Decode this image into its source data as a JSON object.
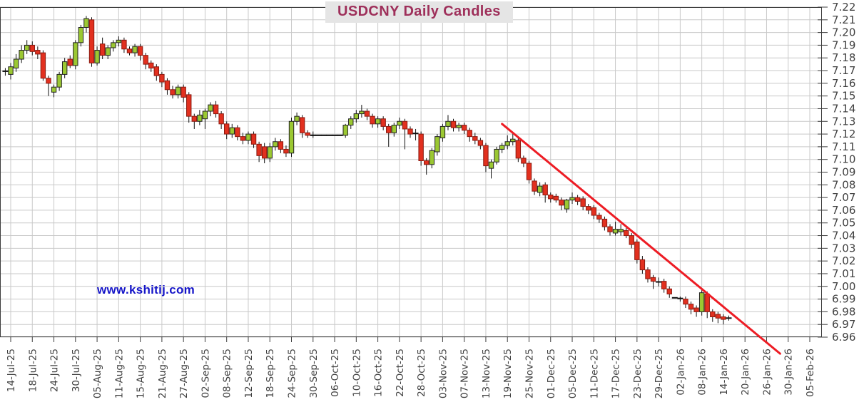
{
  "title": "USDCNY Daily Candles",
  "watermark": "www.kshitij.com",
  "colors": {
    "background": "#ffffff",
    "title_text": "#9e2f5a",
    "title_bg": "#e5e5e5",
    "watermark_text": "#1515c8",
    "up_candle": "#9bc832",
    "up_border": "#222222",
    "down_candle": "#e2301f",
    "down_border": "#8b1a10",
    "wick": "#111111",
    "grid": "#c9c9c9",
    "axis": "#3c3c3c",
    "label_text": "#404040",
    "trendline": "#ed1c24"
  },
  "chart_data": {
    "type": "candlestick",
    "title": "USDCNY Daily Candles",
    "grid": true,
    "y_axis": {
      "min": 6.96,
      "max": 7.22,
      "step": 0.01,
      "side": "right",
      "labels": [
        "7.22",
        "7.21",
        "7.20",
        "7.19",
        "7.18",
        "7.17",
        "7.16",
        "7.15",
        "7.14",
        "7.13",
        "7.12",
        "7.11",
        "7.10",
        "7.09",
        "7.08",
        "7.07",
        "7.06",
        "7.05",
        "7.04",
        "7.03",
        "7.02",
        "7.01",
        "7.00",
        "6.99",
        "6.98",
        "6.97",
        "6.96"
      ]
    },
    "x_axis": {
      "labels": [
        "14-Jul-25",
        "18-Jul-25",
        "24-Jul-25",
        "30-Jul-25",
        "05-Aug-25",
        "11-Aug-25",
        "15-Aug-25",
        "21-Aug-25",
        "27-Aug-25",
        "02-Sep-25",
        "08-Sep-25",
        "12-Sep-25",
        "18-Sep-25",
        "24-Sep-25",
        "30-Sep-25",
        "06-Oct-25",
        "10-Oct-25",
        "16-Oct-25",
        "22-Oct-25",
        "28-Oct-25",
        "03-Nov-25",
        "07-Nov-25",
        "13-Nov-25",
        "19-Nov-25",
        "25-Nov-25",
        "01-Dec-25",
        "05-Dec-25",
        "11-Dec-25",
        "17-Dec-25",
        "23-Dec-25",
        "29-Dec-25",
        "02-Jan-26",
        "08-Jan-26",
        "14-Jan-26",
        "20-Jan-26",
        "26-Jan-26",
        "30-Jan-26",
        "05-Feb-26"
      ],
      "candles_per_label": 4,
      "first_label_candle_index": 1,
      "label_rotation_deg": -90
    },
    "candles_format": [
      "date",
      "open",
      "high",
      "low",
      "close"
    ],
    "candles": [
      [
        "11-Jul",
        7.17,
        7.172,
        7.166,
        7.169
      ],
      [
        "14-Jul",
        7.167,
        7.176,
        7.163,
        7.173
      ],
      [
        "15-Jul",
        7.172,
        7.183,
        7.169,
        7.179
      ],
      [
        "16-Jul",
        7.179,
        7.19,
        7.176,
        7.186
      ],
      [
        "17-Jul",
        7.186,
        7.194,
        7.183,
        7.19
      ],
      [
        "18-Jul",
        7.19,
        7.193,
        7.182,
        7.185
      ],
      [
        "21-Jul",
        7.186,
        7.189,
        7.179,
        7.183
      ],
      [
        "22-Jul",
        7.184,
        7.186,
        7.162,
        7.164
      ],
      [
        "23-Jul",
        7.164,
        7.166,
        7.15,
        7.16
      ],
      [
        "24-Jul",
        7.153,
        7.159,
        7.149,
        7.157
      ],
      [
        "25-Jul",
        7.157,
        7.169,
        7.154,
        7.167
      ],
      [
        "28-Jul",
        7.167,
        7.18,
        7.164,
        7.177
      ],
      [
        "29-Jul",
        7.179,
        7.182,
        7.172,
        7.174
      ],
      [
        "30-Jul",
        7.174,
        7.194,
        7.171,
        7.192
      ],
      [
        "31-Jul",
        7.192,
        7.206,
        7.189,
        7.204
      ],
      [
        "01-Aug",
        7.204,
        7.213,
        7.2,
        7.211
      ],
      [
        "04-Aug",
        7.21,
        7.212,
        7.173,
        7.176
      ],
      [
        "05-Aug",
        7.176,
        7.189,
        7.174,
        7.186
      ],
      [
        "06-Aug",
        7.191,
        7.196,
        7.179,
        7.182
      ],
      [
        "07-Aug",
        7.182,
        7.19,
        7.179,
        7.188
      ],
      [
        "08-Aug",
        7.188,
        7.194,
        7.185,
        7.192
      ],
      [
        "11-Aug",
        7.192,
        7.197,
        7.189,
        7.194
      ],
      [
        "12-Aug",
        7.194,
        7.196,
        7.184,
        7.187
      ],
      [
        "13-Aug",
        7.187,
        7.189,
        7.182,
        7.184
      ],
      [
        "14-Aug",
        7.184,
        7.191,
        7.181,
        7.189
      ],
      [
        "15-Aug",
        7.189,
        7.191,
        7.178,
        7.182
      ],
      [
        "18-Aug",
        7.182,
        7.184,
        7.171,
        7.175
      ],
      [
        "19-Aug",
        7.176,
        7.178,
        7.169,
        7.172
      ],
      [
        "20-Aug",
        7.173,
        7.175,
        7.162,
        7.166
      ],
      [
        "21-Aug",
        7.167,
        7.169,
        7.157,
        7.161
      ],
      [
        "22-Aug",
        7.162,
        7.164,
        7.151,
        7.155
      ],
      [
        "25-Aug",
        7.155,
        7.158,
        7.148,
        7.151
      ],
      [
        "26-Aug",
        7.151,
        7.159,
        7.148,
        7.157
      ],
      [
        "27-Aug",
        7.157,
        7.159,
        7.145,
        7.149
      ],
      [
        "28-Aug",
        7.151,
        7.153,
        7.129,
        7.134
      ],
      [
        "29-Aug",
        7.134,
        7.136,
        7.124,
        7.13
      ],
      [
        "01-Sep",
        7.13,
        7.139,
        7.127,
        7.135
      ],
      [
        "02-Sep",
        7.132,
        7.14,
        7.124,
        7.138
      ],
      [
        "03-Sep",
        7.138,
        7.145,
        7.134,
        7.143
      ],
      [
        "04-Sep",
        7.143,
        7.146,
        7.133,
        7.136
      ],
      [
        "05-Sep",
        7.136,
        7.138,
        7.124,
        7.128
      ],
      [
        "08-Sep",
        7.128,
        7.13,
        7.116,
        7.12
      ],
      [
        "09-Sep",
        7.12,
        7.128,
        7.117,
        7.125
      ],
      [
        "10-Sep",
        7.125,
        7.127,
        7.115,
        7.118
      ],
      [
        "11-Sep",
        7.118,
        7.121,
        7.112,
        7.115
      ],
      [
        "12-Sep",
        7.115,
        7.122,
        7.112,
        7.12
      ],
      [
        "15-Sep",
        7.12,
        7.122,
        7.109,
        7.112
      ],
      [
        "16-Sep",
        7.112,
        7.114,
        7.098,
        7.103
      ],
      [
        "17-Sep",
        7.11,
        7.113,
        7.097,
        7.101
      ],
      [
        "18-Sep",
        7.101,
        7.113,
        7.098,
        7.11
      ],
      [
        "19-Sep",
        7.11,
        7.117,
        7.107,
        7.114
      ],
      [
        "22-Sep",
        7.114,
        7.116,
        7.105,
        7.108
      ],
      [
        "23-Sep",
        7.108,
        7.111,
        7.102,
        7.105
      ],
      [
        "24-Sep",
        7.105,
        7.133,
        7.102,
        7.13
      ],
      [
        "25-Sep",
        7.13,
        7.137,
        7.127,
        7.134
      ],
      [
        "26-Sep",
        7.133,
        7.135,
        7.117,
        7.121
      ],
      [
        "29-Sep",
        7.121,
        7.123,
        7.117,
        7.119
      ],
      [
        "30-Sep",
        7.119,
        7.122,
        7.117,
        7.119
      ],
      [
        "01-Oct",
        7.119,
        7.119,
        7.119,
        7.119
      ],
      [
        "02-Oct",
        7.119,
        7.119,
        7.119,
        7.119
      ],
      [
        "03-Oct",
        7.119,
        7.119,
        7.119,
        7.119
      ],
      [
        "06-Oct",
        7.119,
        7.119,
        7.119,
        7.119
      ],
      [
        "07-Oct",
        7.119,
        7.119,
        7.119,
        7.119
      ],
      [
        "08-Oct",
        7.119,
        7.128,
        7.117,
        7.127
      ],
      [
        "09-Oct",
        7.127,
        7.134,
        7.124,
        7.132
      ],
      [
        "10-Oct",
        7.132,
        7.139,
        7.129,
        7.136
      ],
      [
        "13-Oct",
        7.136,
        7.143,
        7.133,
        7.138
      ],
      [
        "14-Oct",
        7.138,
        7.14,
        7.131,
        7.134
      ],
      [
        "15-Oct",
        7.134,
        7.136,
        7.125,
        7.128
      ],
      [
        "16-Oct",
        7.128,
        7.134,
        7.125,
        7.132
      ],
      [
        "17-Oct",
        7.132,
        7.134,
        7.123,
        7.126
      ],
      [
        "20-Oct",
        7.126,
        7.128,
        7.11,
        7.121
      ],
      [
        "21-Oct",
        7.121,
        7.129,
        7.118,
        7.127
      ],
      [
        "22-Oct",
        7.127,
        7.133,
        7.124,
        7.13
      ],
      [
        "23-Oct",
        7.13,
        7.132,
        7.108,
        7.124
      ],
      [
        "24-Oct",
        7.124,
        7.126,
        7.117,
        7.12
      ],
      [
        "27-Oct",
        7.121,
        7.124,
        7.115,
        7.12
      ],
      [
        "28-Oct",
        7.12,
        7.122,
        7.095,
        7.099
      ],
      [
        "29-Oct",
        7.099,
        7.101,
        7.088,
        7.096
      ],
      [
        "30-Oct",
        7.096,
        7.109,
        7.093,
        7.107
      ],
      [
        "31-Oct",
        7.106,
        7.12,
        7.103,
        7.118
      ],
      [
        "03-Nov",
        7.117,
        7.128,
        7.114,
        7.126
      ],
      [
        "04-Nov",
        7.126,
        7.135,
        7.123,
        7.13
      ],
      [
        "05-Nov",
        7.13,
        7.132,
        7.122,
        7.125
      ],
      [
        "06-Nov",
        7.125,
        7.129,
        7.122,
        7.127
      ],
      [
        "07-Nov",
        7.127,
        7.129,
        7.12,
        7.123
      ],
      [
        "10-Nov",
        7.123,
        7.125,
        7.114,
        7.118
      ],
      [
        "11-Nov",
        7.118,
        7.121,
        7.112,
        7.115
      ],
      [
        "12-Nov",
        7.115,
        7.117,
        7.108,
        7.111
      ],
      [
        "13-Nov",
        7.111,
        7.113,
        7.09,
        7.095
      ],
      [
        "14-Nov",
        7.093,
        7.1,
        7.085,
        7.098
      ],
      [
        "17-Nov",
        7.098,
        7.11,
        7.096,
        7.108
      ],
      [
        "18-Nov",
        7.108,
        7.113,
        7.105,
        7.111
      ],
      [
        "19-Nov",
        7.111,
        7.119,
        7.108,
        7.114
      ],
      [
        "20-Nov",
        7.114,
        7.121,
        7.111,
        7.116
      ],
      [
        "21-Nov",
        7.115,
        7.117,
        7.098,
        7.101
      ],
      [
        "24-Nov",
        7.101,
        7.103,
        7.094,
        7.097
      ],
      [
        "25-Nov",
        7.097,
        7.099,
        7.081,
        7.084
      ],
      [
        "26-Nov",
        7.083,
        7.085,
        7.072,
        7.075
      ],
      [
        "27-Nov",
        7.074,
        7.082,
        7.071,
        7.079
      ],
      [
        "28-Nov",
        7.08,
        7.082,
        7.066,
        7.072
      ],
      [
        "01-Dec",
        7.072,
        7.074,
        7.066,
        7.069
      ],
      [
        "02-Dec",
        7.071,
        7.073,
        7.066,
        7.068
      ],
      [
        "03-Dec",
        7.068,
        7.07,
        7.06,
        7.064
      ],
      [
        "04-Dec",
        7.061,
        7.069,
        7.058,
        7.068
      ],
      [
        "05-Dec",
        7.068,
        7.074,
        7.065,
        7.07
      ],
      [
        "08-Dec",
        7.07,
        7.072,
        7.064,
        7.067
      ],
      [
        "09-Dec",
        7.069,
        7.071,
        7.06,
        7.063
      ],
      [
        "10-Dec",
        7.063,
        7.065,
        7.057,
        7.06
      ],
      [
        "11-Dec",
        7.062,
        7.064,
        7.053,
        7.056
      ],
      [
        "12-Dec",
        7.056,
        7.058,
        7.05,
        7.053
      ],
      [
        "15-Dec",
        7.053,
        7.055,
        7.044,
        7.047
      ],
      [
        "16-Dec",
        7.047,
        7.049,
        7.04,
        7.043
      ],
      [
        "17-Dec",
        7.042,
        7.051,
        7.04,
        7.045
      ],
      [
        "18-Dec",
        7.043,
        7.049,
        7.04,
        7.045
      ],
      [
        "19-Dec",
        7.044,
        7.046,
        7.038,
        7.04
      ],
      [
        "22-Dec",
        7.04,
        7.042,
        7.03,
        7.033
      ],
      [
        "23-Dec",
        7.035,
        7.037,
        7.018,
        7.021
      ],
      [
        "24-Dec",
        7.021,
        7.024,
        7.01,
        7.013
      ],
      [
        "25-Dec",
        7.013,
        7.015,
        7.003,
        7.006
      ],
      [
        "26-Dec",
        7.007,
        7.009,
        6.998,
        7.004
      ],
      [
        "29-Dec",
        7.004,
        7.007,
        7.0,
        7.003
      ],
      [
        "30-Dec",
        7.004,
        7.006,
        6.995,
        6.998
      ],
      [
        "31-Dec",
        6.998,
        7.0,
        6.991,
        6.994
      ],
      [
        "01-Jan",
        6.991,
        6.991,
        6.991,
        6.991
      ],
      [
        "02-Jan",
        6.991,
        6.992,
        6.988,
        6.99
      ],
      [
        "05-Jan",
        6.99,
        6.992,
        6.983,
        6.986
      ],
      [
        "06-Jan",
        6.986,
        6.988,
        6.978,
        6.982
      ],
      [
        "07-Jan",
        6.983,
        6.985,
        6.976,
        6.98
      ],
      [
        "08-Jan",
        6.98,
        6.997,
        6.977,
        6.995
      ],
      [
        "09-Jan",
        6.994,
        6.996,
        6.975,
        6.98
      ],
      [
        "12-Jan",
        6.98,
        6.982,
        6.972,
        6.976
      ],
      [
        "13-Jan",
        6.978,
        6.98,
        6.971,
        6.975
      ],
      [
        "14-Jan",
        6.976,
        6.978,
        6.97,
        6.974
      ],
      [
        "15-Jan",
        6.975,
        6.977,
        6.973,
        6.975
      ]
    ],
    "trendline": {
      "color": "#ed1c24",
      "start": {
        "date": "18-Nov-25",
        "candle_index": 92,
        "price": 7.128
      },
      "end": {
        "date": "28-Jan-26",
        "candle_index": 143.5,
        "price": 6.947
      }
    }
  }
}
